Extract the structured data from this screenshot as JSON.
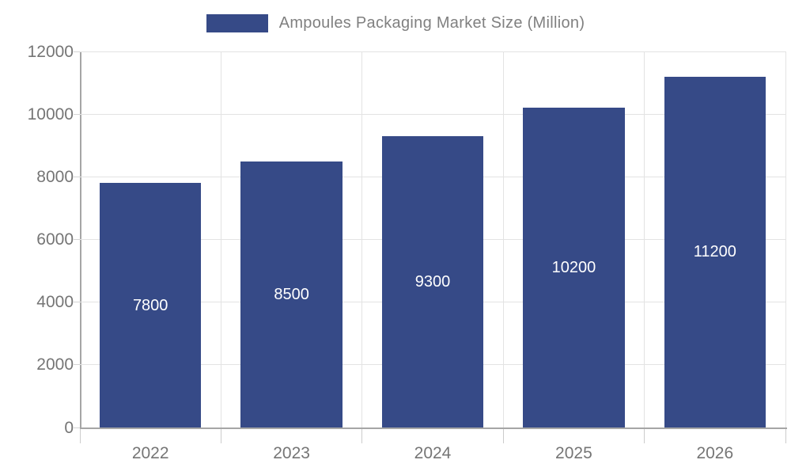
{
  "chart_data": {
    "type": "bar",
    "title": "Ampoules Packaging Market Size (Million)",
    "series_name": "Ampoules Packaging Market Size (Million)",
    "categories": [
      "2022",
      "2023",
      "2024",
      "2025",
      "2026"
    ],
    "values": [
      7800,
      8500,
      9300,
      10200,
      11200
    ],
    "value_labels": [
      "7800",
      "8500",
      "9300",
      "10200",
      "11200"
    ],
    "xlabel": "",
    "ylabel": "",
    "ylim": [
      0,
      12000
    ],
    "yticks": [
      0,
      2000,
      4000,
      6000,
      8000,
      10000,
      12000
    ],
    "ytick_labels": [
      "0",
      "2000",
      "4000",
      "6000",
      "8000",
      "10000",
      "12000"
    ],
    "grid": true,
    "legend_position": "top-center",
    "colors": {
      "bar": "#364A87",
      "value_label": "#ffffff",
      "axis_line": "#a6a6a6",
      "gridline": "#e3e3e3",
      "tick_text": "#757575",
      "legend_text": "#808080",
      "background": "#ffffff"
    }
  }
}
